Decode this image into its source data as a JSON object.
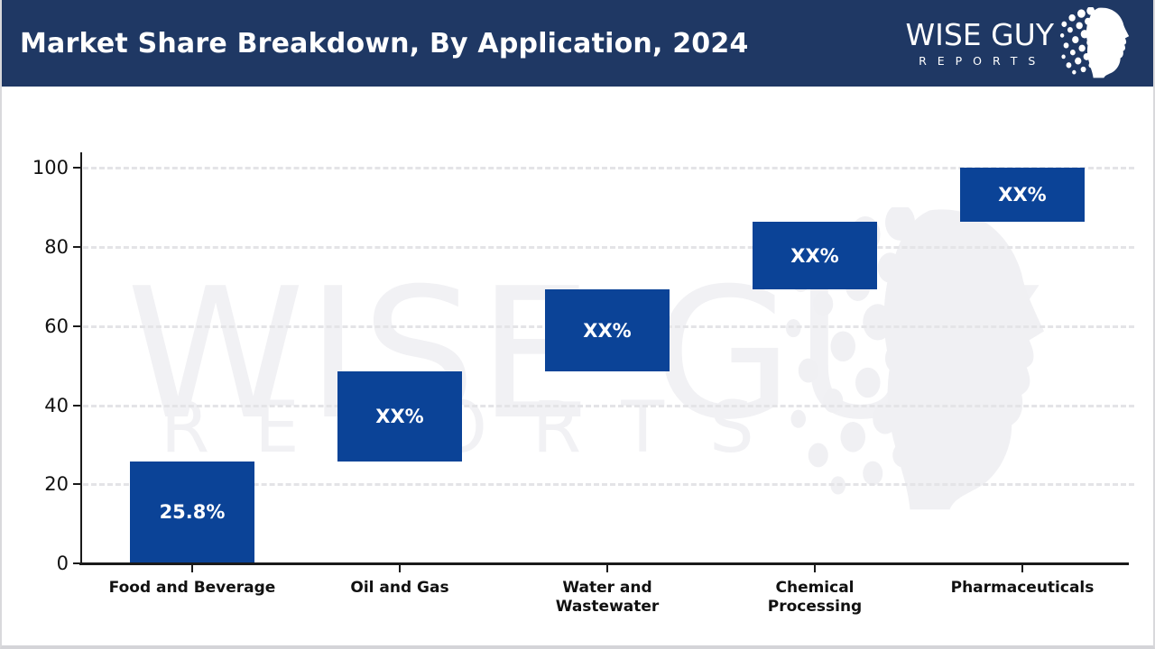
{
  "header": {
    "title": "Market Share Breakdown, By Application, 2024",
    "logo": {
      "line1": "WISE GUY",
      "line2": "REPORTS"
    }
  },
  "watermark": {
    "line1": "WISE GUY",
    "line2": "REPORTS"
  },
  "colors": {
    "header_bg": "#1f3864",
    "bar": "#0b4397",
    "bar_label": "#ffffff",
    "axis": "#1a1a1a",
    "grid": "#e4e4e7",
    "watermark": "#f1f1f4",
    "border": "#d4d4d8"
  },
  "chart_data": {
    "type": "bar",
    "subtype": "waterfall",
    "title": "Market Share Breakdown, By Application, 2024",
    "xlabel": "",
    "ylabel": "",
    "categories": [
      "Food and Beverage",
      "Oil and Gas",
      "Water and Wastewater",
      "Chemical Processing",
      "Pharmaceuticals"
    ],
    "category_tick_lines": [
      [
        "Food and Beverage"
      ],
      [
        "Oil and Gas"
      ],
      [
        "Water and",
        "Wastewater"
      ],
      [
        "Chemical",
        "Processing"
      ],
      [
        "Pharmaceuticals"
      ]
    ],
    "segments": [
      {
        "category": "Food and Beverage",
        "start": 0,
        "end": 25.8,
        "value": 25.8,
        "label": "25.8%"
      },
      {
        "category": "Oil and Gas",
        "start": 25.8,
        "end": 48.6,
        "value": 22.8,
        "label": "XX%"
      },
      {
        "category": "Water and Wastewater",
        "start": 48.6,
        "end": 69.2,
        "value": 20.6,
        "label": "XX%"
      },
      {
        "category": "Chemical Processing",
        "start": 69.2,
        "end": 86.4,
        "value": 17.2,
        "label": "XX%"
      },
      {
        "category": "Pharmaceuticals",
        "start": 86.4,
        "end": 100.0,
        "value": 13.6,
        "label": "XX%"
      }
    ],
    "yticks": [
      0,
      20,
      40,
      60,
      80,
      100
    ],
    "ylim": [
      0,
      107
    ],
    "grid": "horizontal-dashed",
    "legend": "none"
  }
}
